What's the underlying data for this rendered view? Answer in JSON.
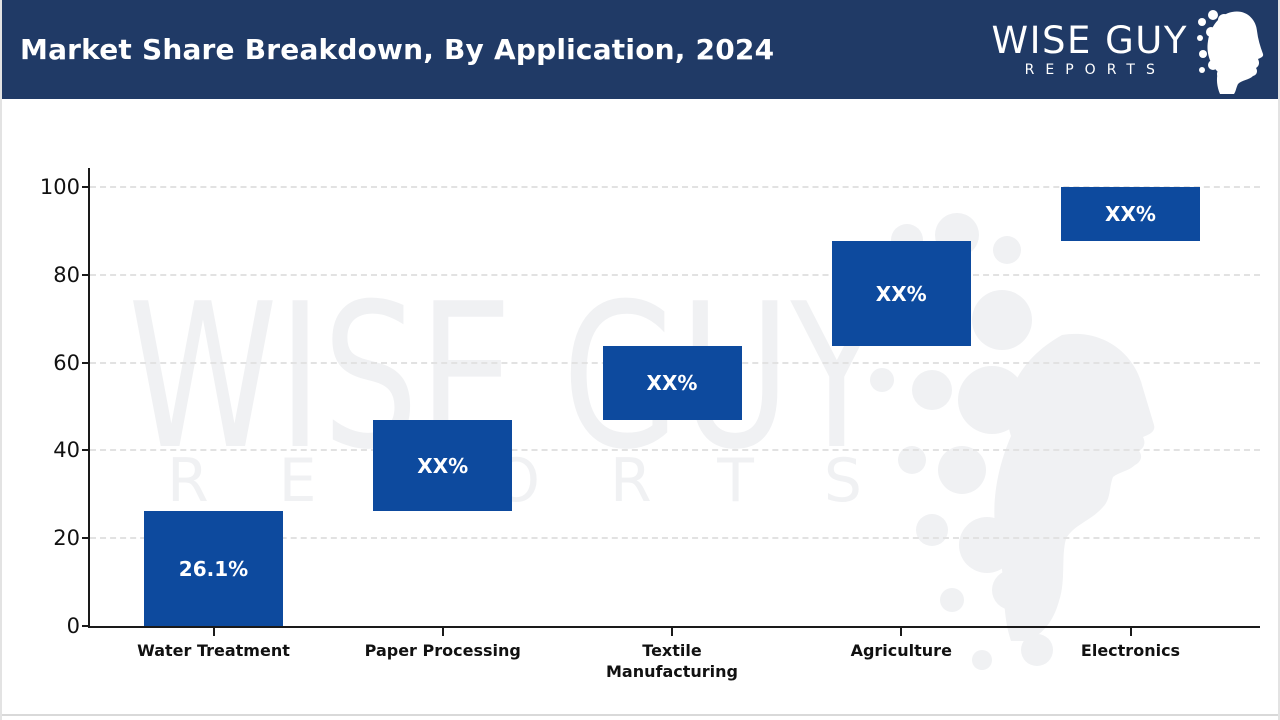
{
  "header": {
    "title": "Market Share Breakdown, By Application, 2024",
    "bg_color": "#203a66",
    "logo": {
      "wordmark": "WISE GUY",
      "subtext": "REPORTS"
    }
  },
  "watermark": {
    "line1": "WISE GUY",
    "line2": "REPORTS"
  },
  "chart_data": {
    "type": "bar",
    "subtype": "waterfall-floating-segments",
    "title": "Market Share Breakdown, By Application, 2024",
    "categories": [
      "Water Treatment",
      "Paper Processing",
      "Textile Manufacturing",
      "Agriculture",
      "Electronics"
    ],
    "segments": [
      {
        "category": "Water Treatment",
        "start": 0,
        "end": 26.1,
        "label": "26.1%"
      },
      {
        "category": "Paper Processing",
        "start": 26.1,
        "end": 46.9,
        "label": "XX%"
      },
      {
        "category": "Textile Manufacturing",
        "start": 46.9,
        "end": 63.8,
        "label": "XX%"
      },
      {
        "category": "Agriculture",
        "start": 63.8,
        "end": 87.6,
        "label": "XX%"
      },
      {
        "category": "Electronics",
        "start": 87.6,
        "end": 100,
        "label": "XX%"
      }
    ],
    "increments": [
      26.1,
      20.8,
      16.9,
      23.8,
      12.4
    ],
    "xlabel": "",
    "ylabel": "",
    "yticks": [
      0,
      20,
      40,
      60,
      80,
      100
    ],
    "ylim": [
      0,
      105
    ],
    "grid": "horizontal-dashed",
    "legend": "none",
    "bar_color": "#0d4a9e",
    "bar_label_color": "#ffffff",
    "axis_color": "#1a1a1a",
    "gridline_color": "#e2e2e2",
    "watermark_color": "#f0f1f3"
  }
}
